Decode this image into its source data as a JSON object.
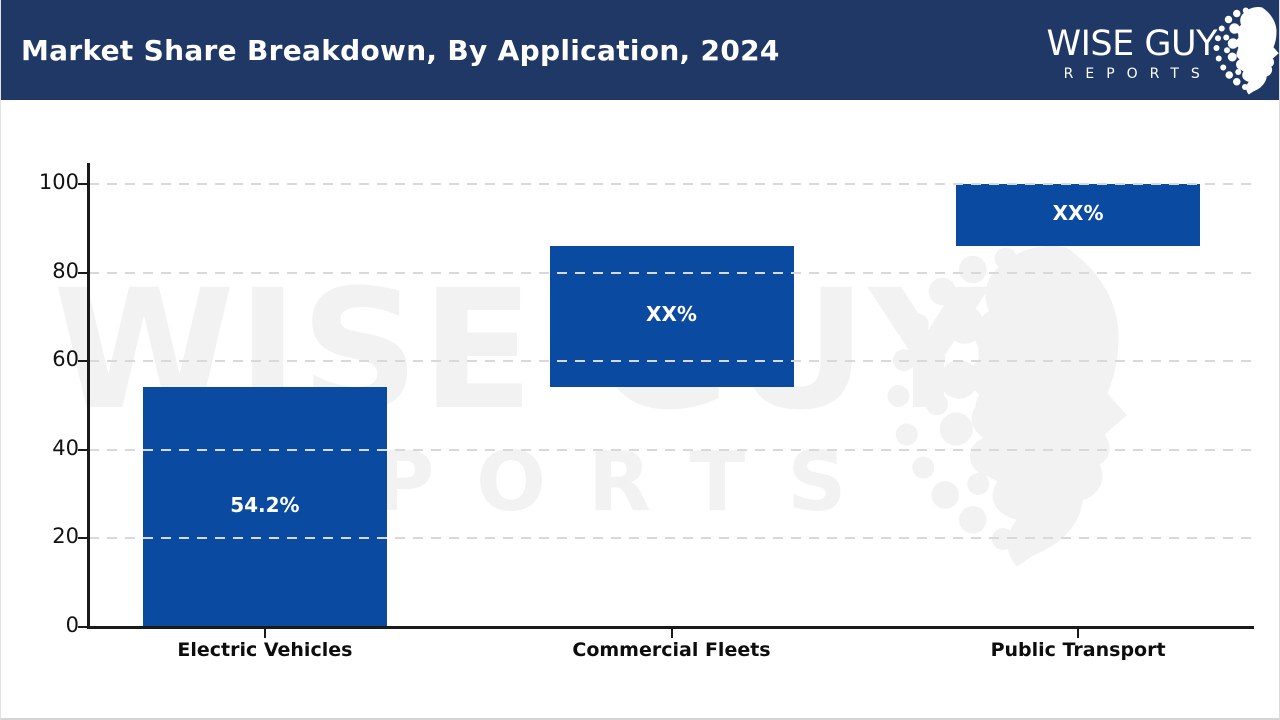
{
  "header": {
    "title": "Market Share Breakdown, By Application, 2024",
    "logo": {
      "wordmark": "WISE GUY",
      "subtitle": "REPORTS"
    }
  },
  "watermark": {
    "wordmark": "WISE GUY",
    "subtitle": "REPORTS"
  },
  "chart_data": {
    "type": "bar",
    "subtype": "waterfall",
    "title": "Market Share Breakdown, By Application, 2024",
    "categories": [
      "Electric Vehicles",
      "Commercial Fleets",
      "Public Transport"
    ],
    "segments": [
      {
        "category": "Electric Vehicles",
        "start": 0,
        "end": 54.2,
        "value_label": "54.2%"
      },
      {
        "category": "Commercial Fleets",
        "start": 54.2,
        "end": 86,
        "value_label": "XX%"
      },
      {
        "category": "Public Transport",
        "start": 86,
        "end": 100,
        "value_label": "XX%"
      }
    ],
    "xlabel": "",
    "ylabel": "",
    "ylim": [
      0,
      100
    ],
    "yticks": [
      0,
      20,
      40,
      60,
      80,
      100
    ],
    "grid": "horizontal-dashed",
    "legend": "none",
    "bar_color": "#0B4AA1",
    "value_label_color": "#FFFFFF"
  },
  "colors": {
    "header_bg": "#1F3865",
    "text_on_header": "#FFFFFF",
    "axis": "#1A1A1A",
    "gridline": "#D9D9D9",
    "watermark": "#F2F2F2",
    "background": "#FFFFFF"
  }
}
